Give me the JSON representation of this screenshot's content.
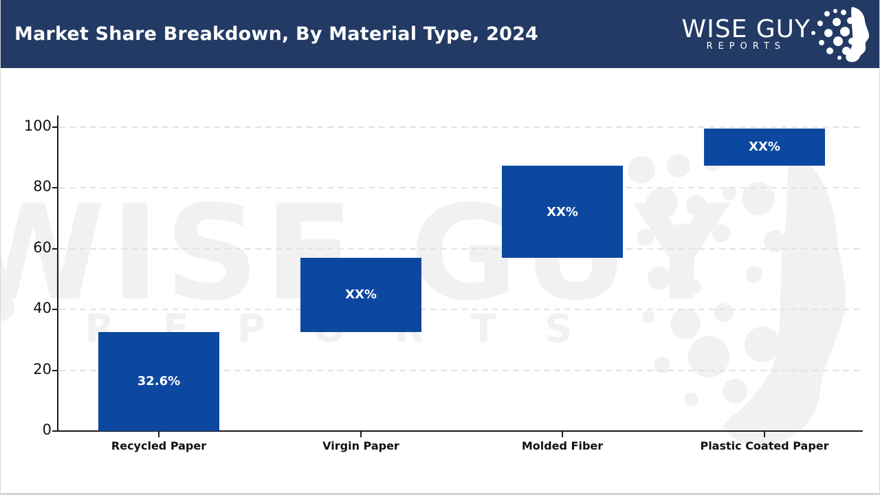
{
  "header": {
    "title": "Market Share Breakdown, By Material Type, 2024",
    "logo": {
      "line1": "WISE GUY",
      "line2": "REPORTS"
    }
  },
  "watermark": {
    "line1": "WISE GUY",
    "line2": "REPORTS"
  },
  "chart_data": {
    "type": "bar",
    "subtype": "waterfall-floating-bars",
    "title": "Market Share Breakdown, By Material Type, 2024",
    "categories": [
      "Recycled Paper",
      "Virgin Paper",
      "Molded Fiber",
      "Plastic Coated Paper"
    ],
    "segments": [
      {
        "category": "Recycled Paper",
        "start": 0,
        "end": 32.6,
        "label": "32.6%"
      },
      {
        "category": "Virgin Paper",
        "start": 32.6,
        "end": 57.0,
        "label": "XX%"
      },
      {
        "category": "Molded Fiber",
        "start": 57.0,
        "end": 87.3,
        "label": "XX%"
      },
      {
        "category": "Plastic Coated Paper",
        "start": 87.4,
        "end": 99.6,
        "label": "XX%"
      }
    ],
    "xlabel": "",
    "ylabel": "",
    "ylim": [
      0,
      100
    ],
    "yticks": [
      0,
      20,
      40,
      60,
      80,
      100
    ],
    "grid": "horizontal-dashed",
    "legend": "none",
    "bar_color": "#0D48A0",
    "bar_label_color": "#ffffff",
    "axis_color": "#1a1a1a",
    "gridline_color": "#e2e2e2",
    "header_color": "#223A64",
    "watermark_color": "#f1f1f1"
  }
}
